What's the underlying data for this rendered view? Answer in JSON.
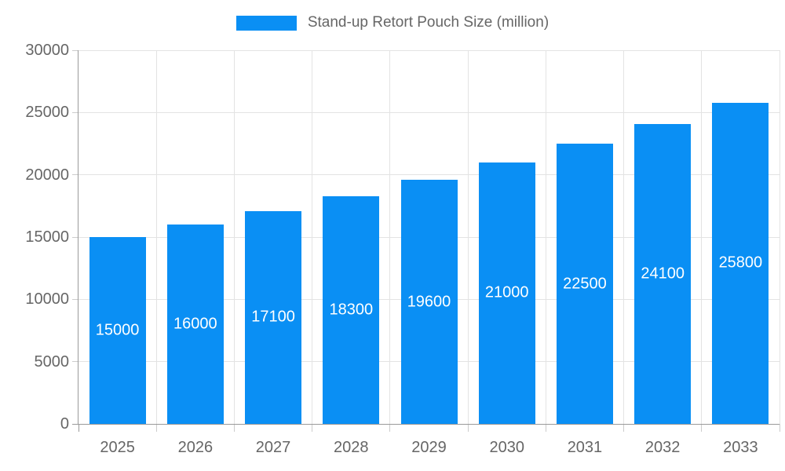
{
  "legend": {
    "label": "Stand-up Retort Pouch Size (million)"
  },
  "chart_data": {
    "type": "bar",
    "title": "Stand-up Retort Pouch Size (million)",
    "categories": [
      "2025",
      "2026",
      "2027",
      "2028",
      "2029",
      "2030",
      "2031",
      "2032",
      "2033"
    ],
    "values": [
      15000,
      16000,
      17100,
      18300,
      19600,
      21000,
      22500,
      24100,
      25800
    ],
    "value_labels": [
      "15000",
      "16000",
      "17100",
      "18300",
      "19600",
      "21000",
      "22500",
      "24100",
      "25800"
    ],
    "xlabel": "",
    "ylabel": "",
    "ylim": [
      0,
      30000
    ],
    "ytick_step": 5000,
    "ytick_labels": [
      "0",
      "5000",
      "10000",
      "15000",
      "20000",
      "25000",
      "30000"
    ],
    "grid": true,
    "legend_position": "top",
    "colors": {
      "bar": "#0a8ff4",
      "value_label": "#ffffff",
      "axis_text": "#666666",
      "grid_line": "#e3e3e3",
      "axis_line": "#9a9a9a",
      "minor_tick": "#cccccc"
    }
  }
}
